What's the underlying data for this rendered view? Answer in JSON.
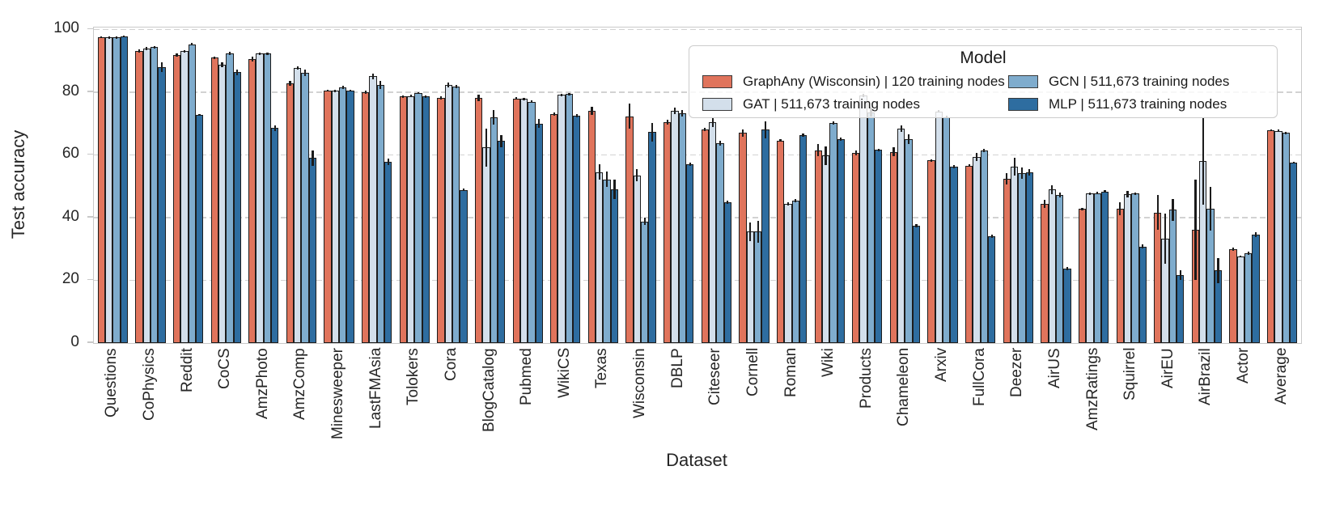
{
  "chart_data": {
    "type": "bar",
    "title": "",
    "xlabel": "Dataset",
    "ylabel": "Test accuracy",
    "ylim": [
      0,
      100.6
    ],
    "yticks": [
      0,
      20,
      40,
      60,
      80,
      100
    ],
    "grid": "horizontal-dashed",
    "legend": {
      "title": "Model",
      "position": "upper right",
      "columns": [
        [
          0,
          1
        ],
        [
          2,
          3
        ]
      ]
    },
    "categories": [
      "Questions",
      "CoPhysics",
      "Reddit",
      "CoCS",
      "AmzPhoto",
      "AmzComp",
      "Minesweeper",
      "LastFMAsia",
      "Tolokers",
      "Cora",
      "BlogCatalog",
      "Pubmed",
      "WikiCS",
      "Texas",
      "Wisconsin",
      "DBLP",
      "Citeseer",
      "Cornell",
      "Roman",
      "Wiki",
      "Products",
      "Chameleon",
      "Arxiv",
      "FullCora",
      "Deezer",
      "AirUS",
      "AmzRatings",
      "Squirrel",
      "AirEU",
      "AirBrazil",
      "Actor",
      "Average"
    ],
    "series": [
      {
        "key": "graphany",
        "name": "GraphAny (Wisconsin) | 120 training nodes",
        "color": "#E0745C",
        "values": [
          97.5,
          93.1,
          91.8,
          91.0,
          90.5,
          82.8,
          80.5,
          79.9,
          78.6,
          78.2,
          78.2,
          78.0,
          73.0,
          74.0,
          72.3,
          70.4,
          68.1,
          67.0,
          64.5,
          61.5,
          60.6,
          61.0,
          58.2,
          56.6,
          52.4,
          44.4,
          42.8,
          42.8,
          41.6,
          36.2,
          29.9,
          67.8
        ],
        "errors": [
          0.2,
          0.5,
          0.5,
          0.4,
          0.8,
          0.8,
          0.2,
          0.5,
          0.3,
          0.5,
          1.0,
          0.3,
          0.4,
          1.2,
          4.0,
          0.8,
          0.5,
          1.2,
          0.4,
          2.0,
          0.8,
          1.5,
          0.4,
          0.4,
          1.8,
          1.2,
          0.4,
          2.0,
          5.5,
          16.0,
          0.5,
          0.3
        ]
      },
      {
        "key": "gat",
        "name": "GAT | 511,673 training nodes",
        "color": "#D3DFEB",
        "values": [
          97.4,
          93.8,
          93.0,
          88.8,
          92.3,
          87.6,
          80.4,
          85.0,
          78.8,
          82.3,
          62.3,
          77.8,
          79.1,
          54.5,
          53.5,
          74.0,
          70.3,
          35.5,
          44.3,
          59.8,
          79.0,
          68.3,
          73.8,
          59.3,
          56.2,
          48.9,
          47.7,
          47.4,
          33.2,
          58.0,
          27.6,
          67.7
        ],
        "errors": [
          0.2,
          0.5,
          0.3,
          0.8,
          0.4,
          0.5,
          0.2,
          0.8,
          0.3,
          0.8,
          6.0,
          0.3,
          0.4,
          2.5,
          2.0,
          1.0,
          1.5,
          3.0,
          0.5,
          3.0,
          0.5,
          1.0,
          0.4,
          1.2,
          2.8,
          1.5,
          0.4,
          1.0,
          8.0,
          14.0,
          0.3,
          0.3
        ]
      },
      {
        "key": "gcn",
        "name": "GCN | 511,673 training nodes",
        "color": "#7FACCD",
        "values": [
          97.4,
          94.3,
          95.3,
          92.3,
          92.3,
          86.2,
          81.5,
          82.3,
          79.7,
          81.8,
          72.0,
          77.0,
          79.4,
          52.2,
          38.8,
          73.3,
          63.8,
          35.5,
          45.4,
          70.2,
          73.6,
          65.0,
          72.0,
          61.5,
          54.2,
          47.1,
          47.8,
          47.6,
          42.5,
          42.8,
          28.6,
          67.0
        ],
        "errors": [
          0.2,
          0.3,
          0.3,
          0.5,
          0.4,
          1.0,
          0.4,
          1.2,
          0.3,
          0.6,
          2.3,
          0.4,
          0.4,
          2.5,
          1.2,
          1.0,
          0.8,
          3.5,
          0.4,
          0.5,
          1.5,
          1.5,
          0.4,
          0.5,
          1.8,
          0.8,
          0.4,
          0.5,
          3.5,
          7.0,
          0.5,
          0.3
        ]
      },
      {
        "key": "mlp",
        "name": "MLP | 511,673 training nodes",
        "color": "#2E6DA0",
        "values": [
          97.7,
          87.9,
          72.8,
          86.3,
          68.5,
          59.0,
          80.5,
          57.8,
          78.6,
          48.8,
          64.4,
          70.0,
          72.5,
          49.0,
          67.2,
          56.9,
          44.8,
          68.0,
          66.3,
          65.0,
          61.6,
          37.3,
          56.2,
          34.0,
          54.5,
          23.7,
          48.3,
          30.8,
          21.7,
          23.2,
          34.5,
          57.5
        ],
        "errors": [
          0.2,
          1.5,
          0.3,
          0.8,
          0.8,
          2.5,
          0.2,
          1.0,
          0.3,
          0.4,
          2.0,
          1.5,
          0.5,
          3.0,
          3.0,
          0.5,
          0.5,
          2.8,
          0.4,
          0.4,
          0.4,
          0.5,
          0.5,
          0.5,
          1.0,
          0.5,
          0.4,
          0.6,
          1.5,
          4.0,
          0.8,
          0.3
        ]
      }
    ]
  }
}
